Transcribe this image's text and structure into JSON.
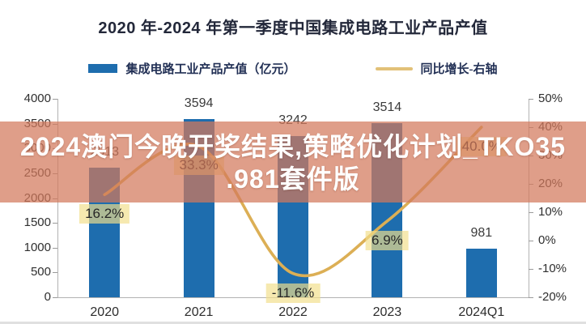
{
  "title": "2020 年-2024 年第一季度中国集成电路工业产品产值",
  "legend": {
    "bar_label": "集成电路工业产品产值（亿元）",
    "line_label": "同比增长-右轴"
  },
  "overlay": {
    "line1": "2024澳门今晚开奖结果,策略优化计划_TKO35",
    "line2": ".981套件版"
  },
  "colors": {
    "bar": "#1e6dae",
    "line": "#dcaf55",
    "legend_line_swatch": "#e2c178",
    "overlay_band": "rgba(210,120,92,0.72)",
    "overlay_text": "#ffffff",
    "title_text": "#23283a",
    "pct_label_bg": "rgba(242,223,138,0.68)"
  },
  "chart_data": {
    "type": "bar",
    "subtype": "bar+line combo, dual axis",
    "title": "2020 年-2024 年第一季度中国集成电路工业产品产值",
    "categories": [
      "2020",
      "2021",
      "2022",
      "2023",
      "2024Q1"
    ],
    "series": [
      {
        "name": "集成电路工业产品产值（亿元）",
        "type": "bar",
        "axis": "left",
        "values": [
          2613,
          3594,
          3242,
          3514,
          981
        ],
        "labels": [
          "2613",
          "3594",
          "3242",
          "3514",
          "981"
        ],
        "note": "2020 label partially hidden behind overlay text"
      },
      {
        "name": "同比增长-右轴",
        "type": "line",
        "axis": "right",
        "values": [
          16.2,
          33.3,
          -11.6,
          6.9,
          40.0
        ],
        "labels": [
          "16.2%",
          "33.3%",
          "-11.6%",
          "6.9%",
          "40.0%"
        ],
        "note": "2024Q1 label partially hidden behind overlay text"
      }
    ],
    "left_axis": {
      "min": 0,
      "max": 4000,
      "step": 500,
      "ticks": [
        "4000",
        "3500",
        "3000",
        "2500",
        "2000",
        "1500",
        "1000",
        "500",
        "0"
      ]
    },
    "right_axis": {
      "min": -20,
      "max": 50,
      "step": 10,
      "ticks": [
        "50%",
        "40%",
        "30%",
        "20%",
        "10%",
        "0%",
        "-10%",
        "-20%"
      ]
    },
    "legend_position": "top",
    "grid": false
  }
}
